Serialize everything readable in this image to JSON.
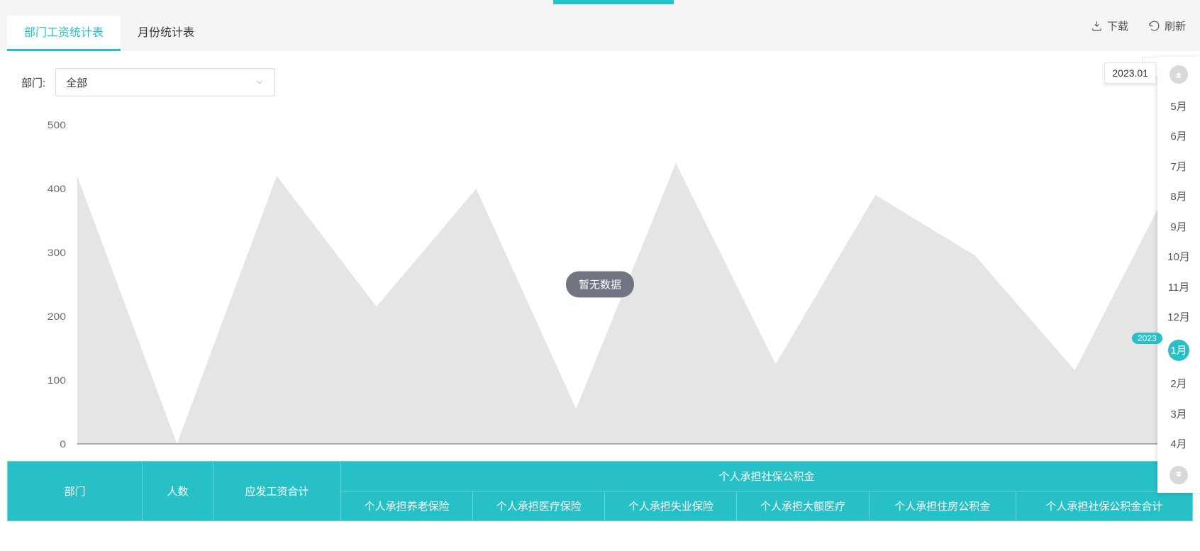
{
  "accent_color": "#27c0c7",
  "tabs": {
    "department": "部门工资统计表",
    "month": "月份统计表",
    "active_index": 0
  },
  "actions": {
    "download": "下载",
    "refresh": "刷新"
  },
  "filter": {
    "label": "部门:",
    "selected": "全部"
  },
  "chart": {
    "type": "area",
    "ylim": [
      0,
      500
    ],
    "ytick_step": 100,
    "ytick_labels": [
      "0",
      "100",
      "200",
      "300",
      "400",
      "500"
    ],
    "values": [
      420,
      0,
      420,
      215,
      400,
      55,
      440,
      125,
      390,
      295,
      115,
      420
    ],
    "fill_color": "#e5e5e5",
    "axis_color": "#6b6b6b",
    "background_color": "#ffffff",
    "tick_fontsize": 14,
    "no_data_text": "暂无数据",
    "no_data_bg": "#707581",
    "no_data_fg": "#ffffff"
  },
  "table": {
    "header_bg": "#27c0c7",
    "header_border": "#67d4d9",
    "header_fg": "#ffffff",
    "cols": {
      "dept": "部门",
      "count": "人数",
      "payable": "应发工资合计",
      "group": "个人承担社保公积金",
      "sub": [
        "个人承担养老保险",
        "个人承担医疗保险",
        "个人承担失业保险",
        "个人承担大额医疗",
        "个人承担住房公积金",
        "个人承担社保公积金合计"
      ]
    }
  },
  "side": {
    "year_label": "2023.01",
    "year_tag": "2023",
    "months": [
      "5月",
      "6月",
      "7月",
      "8月",
      "9月",
      "10月",
      "11月",
      "12月",
      "1月",
      "2月",
      "3月",
      "4月"
    ],
    "active_month_index": 8,
    "year_tag_before_index": 8
  }
}
